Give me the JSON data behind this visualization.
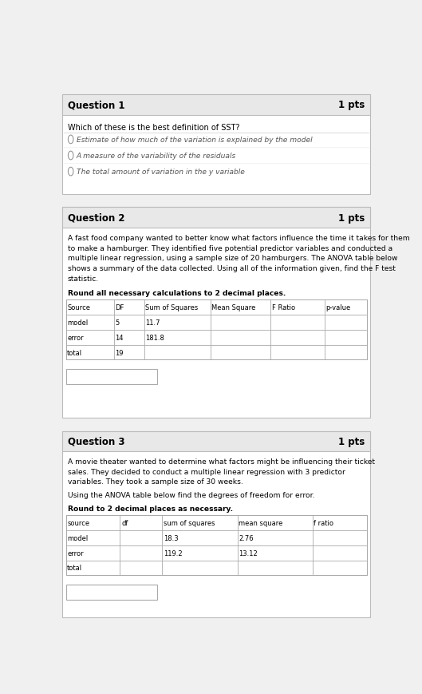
{
  "bg_color": "#f0f0f0",
  "white": "#ffffff",
  "header_bg": "#e8e8e8",
  "border_color": "#cccccc",
  "text_color": "#000000",
  "gray_text": "#555555",
  "q1": {
    "title": "Question 1",
    "pts": "1 pts",
    "question": "Which of these is the best definition of SST?",
    "options": [
      "Estimate of how much of the variation is explained by the model",
      "A measure of the variability of the residuals",
      "The total amount of variation in the y variable"
    ]
  },
  "q2": {
    "title": "Question 2",
    "pts": "1 pts",
    "body": "A fast food company wanted to better know what factors influence the time it takes for them to make a hamburger. They identified five potential predictor variables and conducted a multiple linear regression, using a sample size of 20 hamburgers. The ANOVA table below shows a summary of the data collected. Using all of the information given, find the F test statistic.",
    "bold_note": "Round all necessary calculations to 2 decimal places.",
    "table_headers": [
      "Source",
      "DF",
      "Sum of Squares",
      "Mean Square",
      "F Ratio",
      "p-value"
    ],
    "table_rows": [
      [
        "model",
        "5",
        "11.7",
        "",
        "",
        ""
      ],
      [
        "error",
        "14",
        "181.8",
        "",
        "",
        ""
      ],
      [
        "total",
        "19",
        "",
        "",
        "",
        ""
      ]
    ]
  },
  "q3": {
    "title": "Question 3",
    "pts": "1 pts",
    "body": "A movie theater wanted to determine what factors might be influencing their ticket sales. They decided to conduct a multiple linear regression with 3 predictor variables. They took a sample size of 30 weeks.",
    "body2": "Using the ANOVA table below find the degrees of freedom for error.",
    "bold_note": "Round to 2 decimal places as necessary.",
    "table_headers": [
      "source",
      "df",
      "sum of squares",
      "mean square",
      "f ratio"
    ],
    "table_rows": [
      [
        "model",
        "",
        "18.3",
        "2.76",
        ""
      ],
      [
        "error",
        "",
        "119.2",
        "13.12",
        ""
      ],
      [
        "total",
        "",
        "",
        "",
        ""
      ]
    ]
  }
}
